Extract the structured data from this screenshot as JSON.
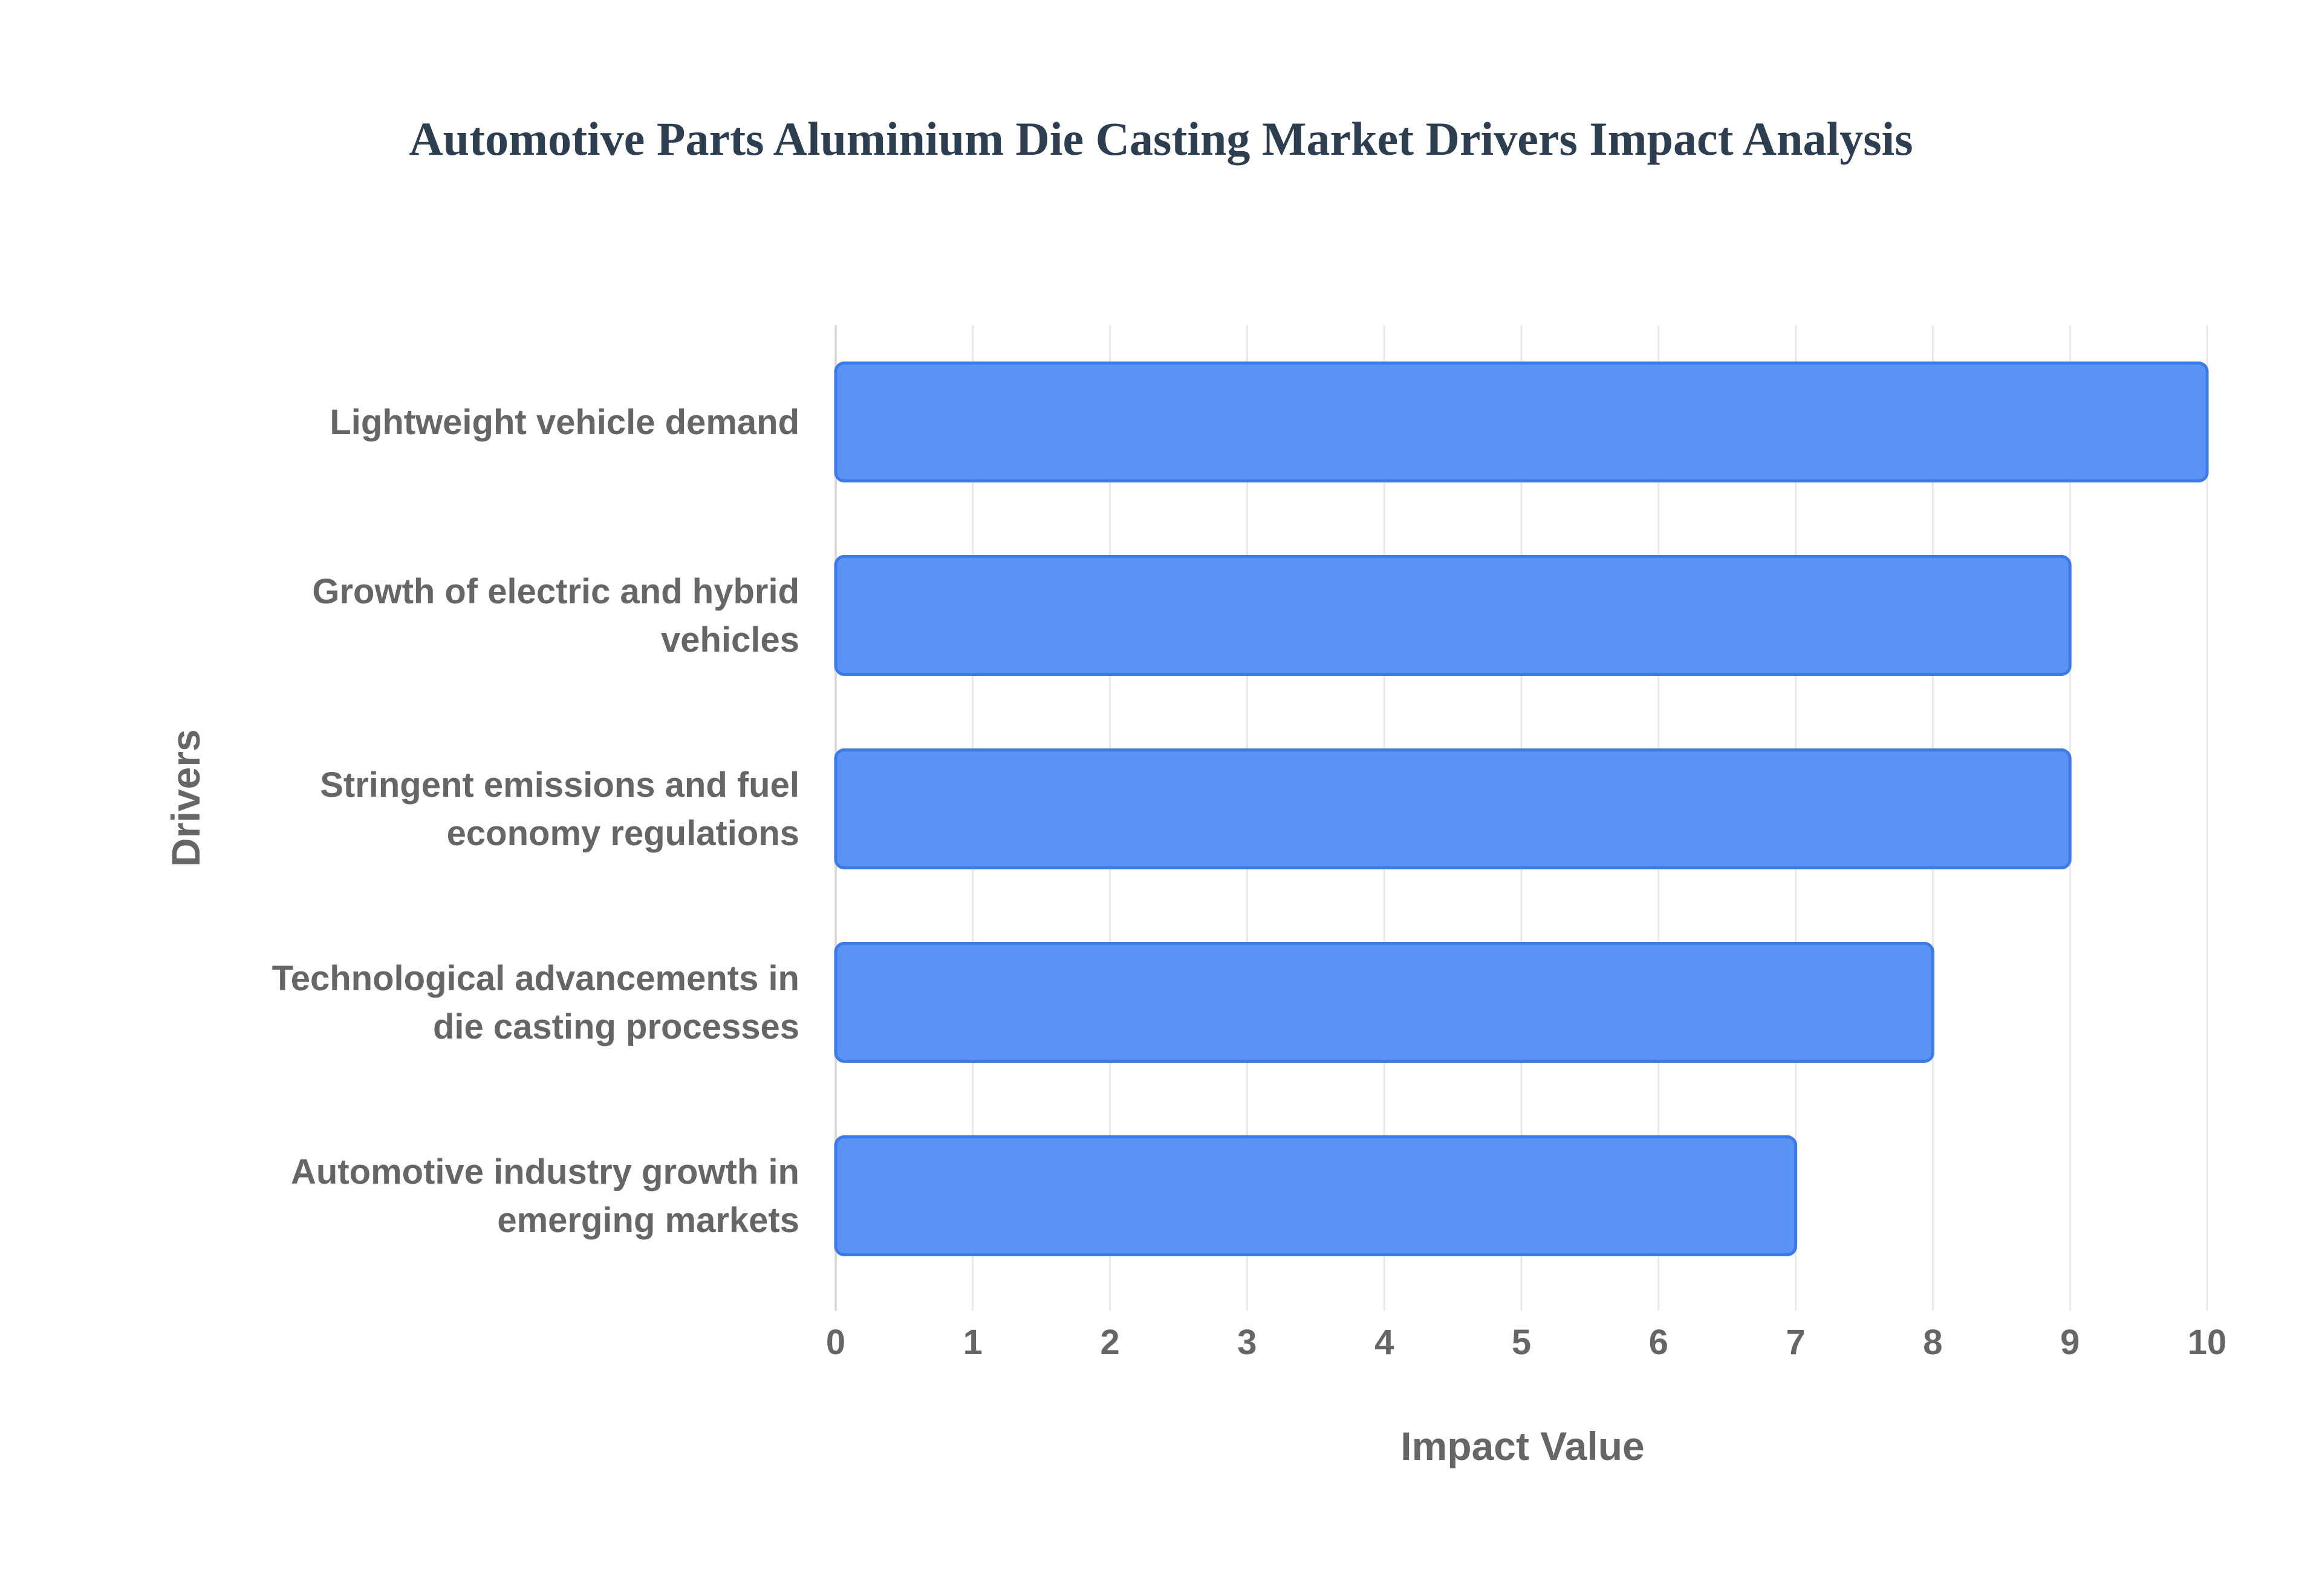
{
  "chart_data": {
    "type": "bar",
    "orientation": "horizontal",
    "title": "Automotive Parts Aluminium Die Casting Market Drivers Impact Analysis",
    "xlabel": "Impact Value",
    "ylabel": "Drivers",
    "categories": [
      [
        "Lightweight vehicle demand"
      ],
      [
        "Growth of electric and hybrid",
        "vehicles"
      ],
      [
        "Stringent emissions and fuel",
        "economy regulations"
      ],
      [
        "Technological advancements in",
        "die casting processes"
      ],
      [
        "Automotive industry growth in",
        "emerging markets"
      ]
    ],
    "values": [
      10,
      9,
      9,
      8,
      7
    ],
    "xlim": [
      0,
      10
    ],
    "xticks": [
      "0",
      "1",
      "2",
      "3",
      "4",
      "5",
      "6",
      "7",
      "8",
      "9",
      "10"
    ],
    "grid": true,
    "legend": "none",
    "colors": {
      "bar_fill": "#5b93f5",
      "bar_stroke": "#3d7ae8",
      "grid": "#e8e8e8",
      "title": "#2c3e50",
      "text": "#666666"
    }
  }
}
